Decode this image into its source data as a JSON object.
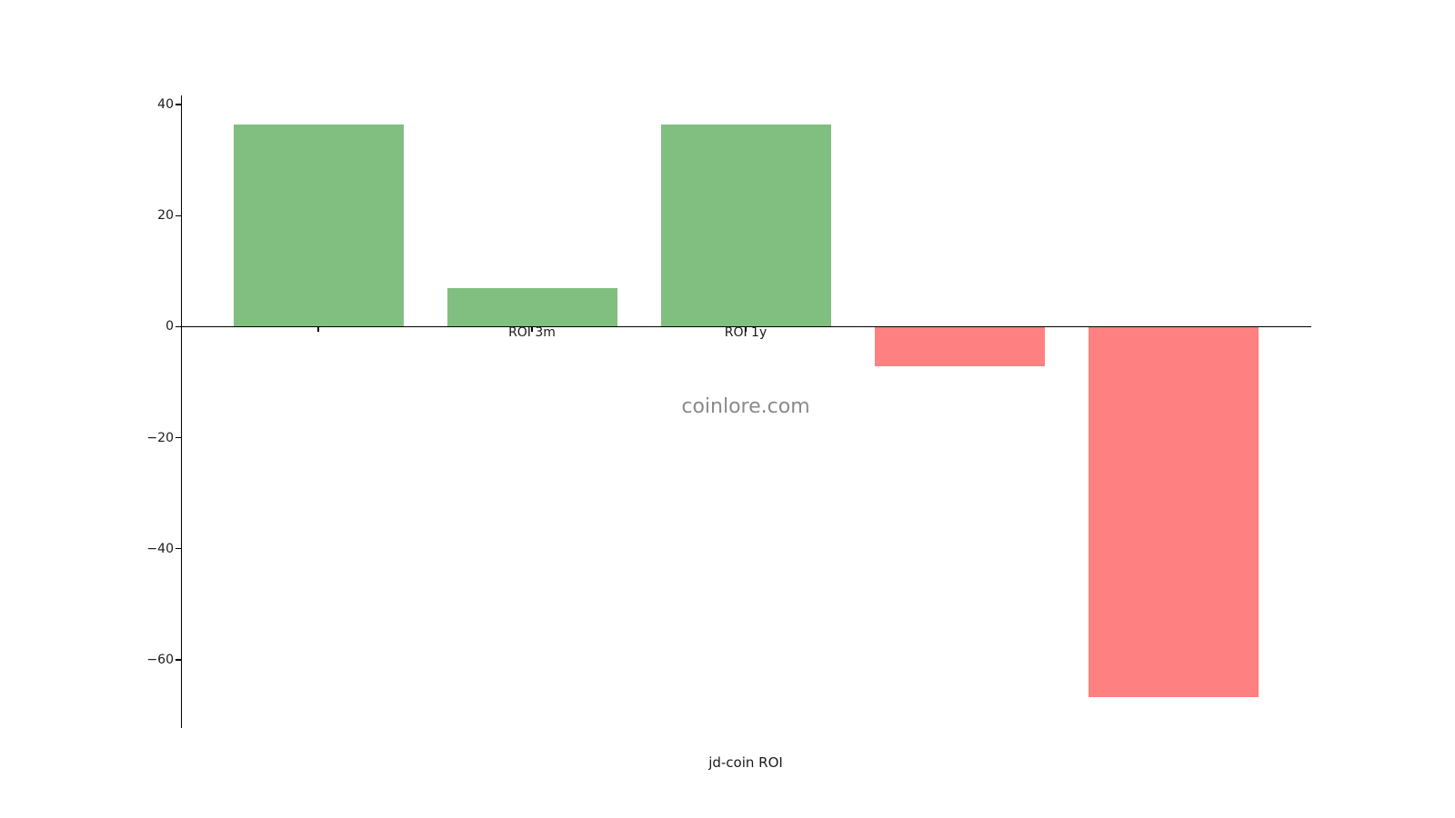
{
  "watermark": {
    "text": "coinlore.com",
    "color": "#8a8a8a"
  },
  "chart_data": {
    "type": "bar",
    "title": "jd-coin ROI",
    "categories": [
      "",
      "ROI 3m",
      "ROI 1y",
      "",
      ""
    ],
    "values": [
      36.4,
      6.9,
      36.4,
      -7.1,
      -66.7
    ],
    "y_ticks": [
      40,
      20,
      0,
      -20,
      -40,
      -60
    ],
    "ylim": [
      -72,
      42
    ],
    "xlabel": "",
    "ylabel": "",
    "grid": false,
    "legend": "none",
    "bar_positive_color": "#80bf80",
    "bar_negative_color": "#ff8080",
    "axis_color": "#000000",
    "tick_label_color": "#1a1a1a"
  }
}
